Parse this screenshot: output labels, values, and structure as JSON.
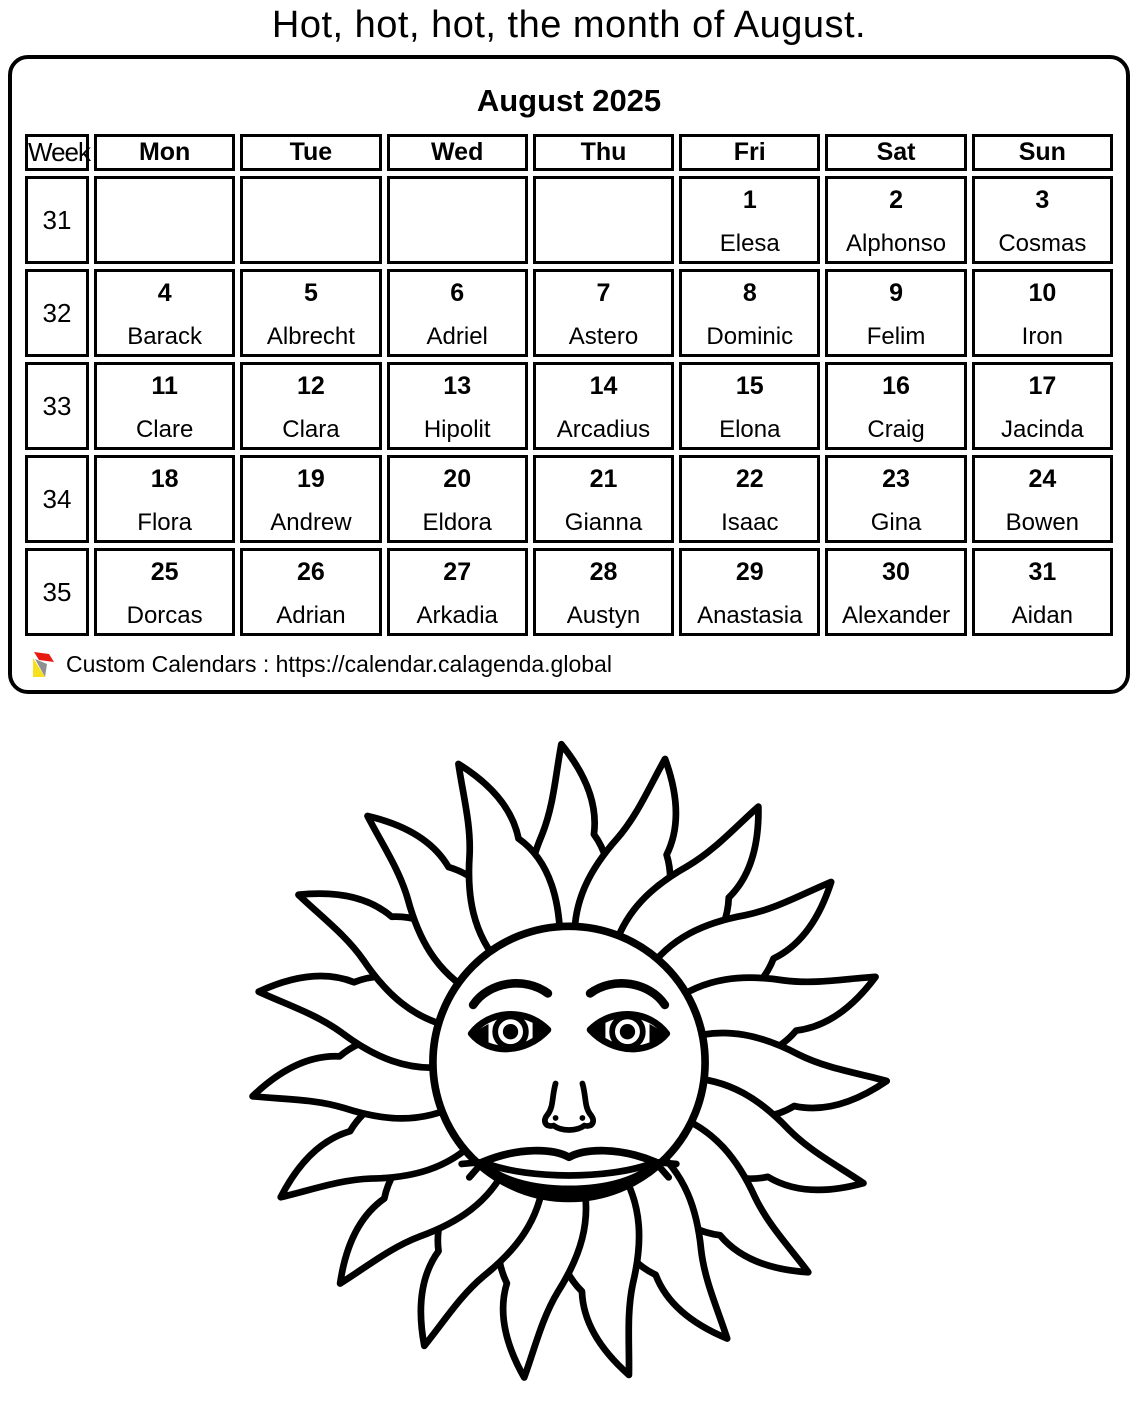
{
  "page_title": "Hot, hot, hot, the month of August.",
  "colors": {
    "ink": "#000000",
    "background": "#ffffff",
    "icon_red": "#e8190f",
    "icon_yellow": "#f8e11c",
    "icon_gray": "#8f9091"
  },
  "calendar": {
    "title": "August 2025",
    "week_column_label": "Week",
    "day_headers": [
      "Mon",
      "Tue",
      "Wed",
      "Thu",
      "Fri",
      "Sat",
      "Sun"
    ],
    "weeks": [
      {
        "week": 31,
        "days": [
          null,
          null,
          null,
          null,
          {
            "num": 1,
            "name": "Elesa"
          },
          {
            "num": 2,
            "name": "Alphonso"
          },
          {
            "num": 3,
            "name": "Cosmas"
          }
        ]
      },
      {
        "week": 32,
        "days": [
          {
            "num": 4,
            "name": "Barack"
          },
          {
            "num": 5,
            "name": "Albrecht"
          },
          {
            "num": 6,
            "name": "Adriel"
          },
          {
            "num": 7,
            "name": "Astero"
          },
          {
            "num": 8,
            "name": "Dominic"
          },
          {
            "num": 9,
            "name": "Felim"
          },
          {
            "num": 10,
            "name": "Iron"
          }
        ]
      },
      {
        "week": 33,
        "days": [
          {
            "num": 11,
            "name": "Clare"
          },
          {
            "num": 12,
            "name": "Clara"
          },
          {
            "num": 13,
            "name": "Hipolit"
          },
          {
            "num": 14,
            "name": "Arcadius"
          },
          {
            "num": 15,
            "name": "Elona"
          },
          {
            "num": 16,
            "name": "Craig"
          },
          {
            "num": 17,
            "name": "Jacinda"
          }
        ]
      },
      {
        "week": 34,
        "days": [
          {
            "num": 18,
            "name": "Flora"
          },
          {
            "num": 19,
            "name": "Andrew"
          },
          {
            "num": 20,
            "name": "Eldora"
          },
          {
            "num": 21,
            "name": "Gianna"
          },
          {
            "num": 22,
            "name": "Isaac"
          },
          {
            "num": 23,
            "name": "Gina"
          },
          {
            "num": 24,
            "name": "Bowen"
          }
        ]
      },
      {
        "week": 35,
        "days": [
          {
            "num": 25,
            "name": "Dorcas"
          },
          {
            "num": 26,
            "name": "Adrian"
          },
          {
            "num": 27,
            "name": "Arkadia"
          },
          {
            "num": 28,
            "name": "Austyn"
          },
          {
            "num": 29,
            "name": "Anastasia"
          },
          {
            "num": 30,
            "name": "Alexander"
          },
          {
            "num": 31,
            "name": "Aidan"
          }
        ]
      }
    ],
    "footer": {
      "icon": "custom-calendar-flag-icon",
      "text": "Custom Calendars : https://calendar.calagenda.global"
    }
  },
  "illustration": {
    "name": "sun-with-face-line-art",
    "description": "Black and white line drawing of a smiling sun face surrounded by wavy flame rays",
    "ray_count": 19
  }
}
